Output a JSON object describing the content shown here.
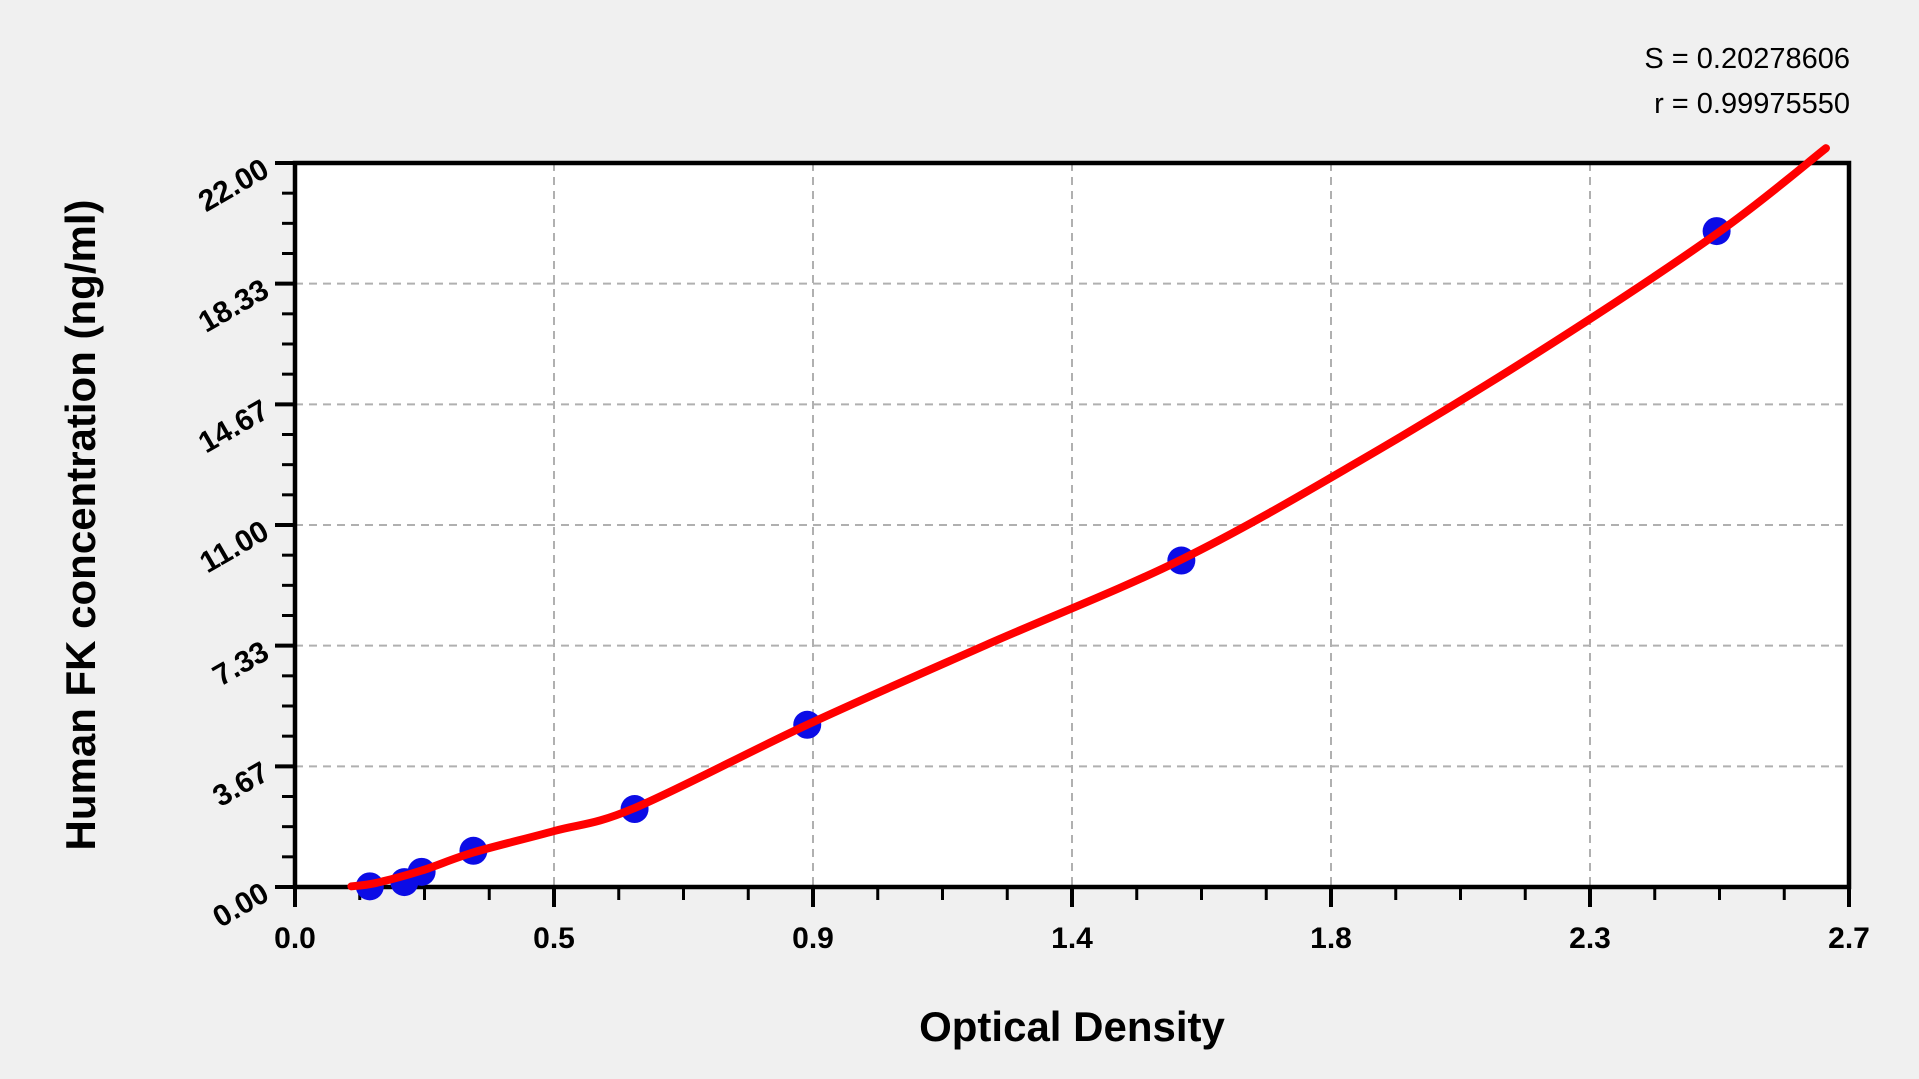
{
  "style": {
    "background": "#f0f0f0",
    "plot_background": "#ffffff",
    "axis_color": "#000000",
    "grid_color": "#b0b0b0",
    "curve_color": "#ff0000",
    "point_color": "#0c0ce6",
    "text_color": "#000000"
  },
  "chart_data": {
    "type": "scatter",
    "title": "",
    "xlabel": "Optical Density",
    "ylabel": "Human FK concentration (ng/ml)",
    "xlim": [
      0,
      2.7
    ],
    "ylim": [
      0,
      22
    ],
    "grid": true,
    "legend_position": "none",
    "x_ticks": {
      "values": [
        0,
        0.45,
        0.9,
        1.35,
        1.8,
        2.25,
        2.7
      ],
      "labels": [
        "0.0",
        "0.5",
        "0.9",
        "1.4",
        "1.8",
        "2.3",
        "2.7"
      ],
      "minor_divisions": 4
    },
    "y_ticks": {
      "values": [
        0,
        3.667,
        7.333,
        11,
        14.667,
        18.333,
        22
      ],
      "labels": [
        "0.00",
        "3.67",
        "7.33",
        "11.00",
        "14.67",
        "18.33",
        "22.00"
      ],
      "minor_divisions": 4
    },
    "series": [
      {
        "name": "standard-points",
        "type": "scatter",
        "marker": "circle",
        "color": "#0c0ce6",
        "points": [
          {
            "od": 0.13,
            "conc": 0.02
          },
          {
            "od": 0.19,
            "conc": 0.15
          },
          {
            "od": 0.22,
            "conc": 0.46
          },
          {
            "od": 0.31,
            "conc": 1.1
          },
          {
            "od": 0.59,
            "conc": 2.37
          },
          {
            "od": 0.89,
            "conc": 4.93
          },
          {
            "od": 1.54,
            "conc": 9.92
          },
          {
            "od": 2.47,
            "conc": 19.93
          }
        ]
      },
      {
        "name": "fitted-curve",
        "type": "line",
        "color": "#ff0000",
        "points": [
          [
            0.098,
            0.02
          ],
          [
            0.14,
            0.12
          ],
          [
            0.22,
            0.5
          ],
          [
            0.31,
            1.05
          ],
          [
            0.45,
            1.7
          ],
          [
            0.59,
            2.4
          ],
          [
            0.89,
            4.93
          ],
          [
            1.2,
            7.35
          ],
          [
            1.54,
            9.95
          ],
          [
            1.85,
            12.95
          ],
          [
            2.16,
            16.25
          ],
          [
            2.47,
            19.85
          ],
          [
            2.66,
            22.45
          ]
        ]
      }
    ],
    "stats": {
      "S": "0.20278606",
      "r": "0.99975550",
      "s_display": "S = 0.20278606",
      "r_display": "r = 0.99975550"
    }
  }
}
